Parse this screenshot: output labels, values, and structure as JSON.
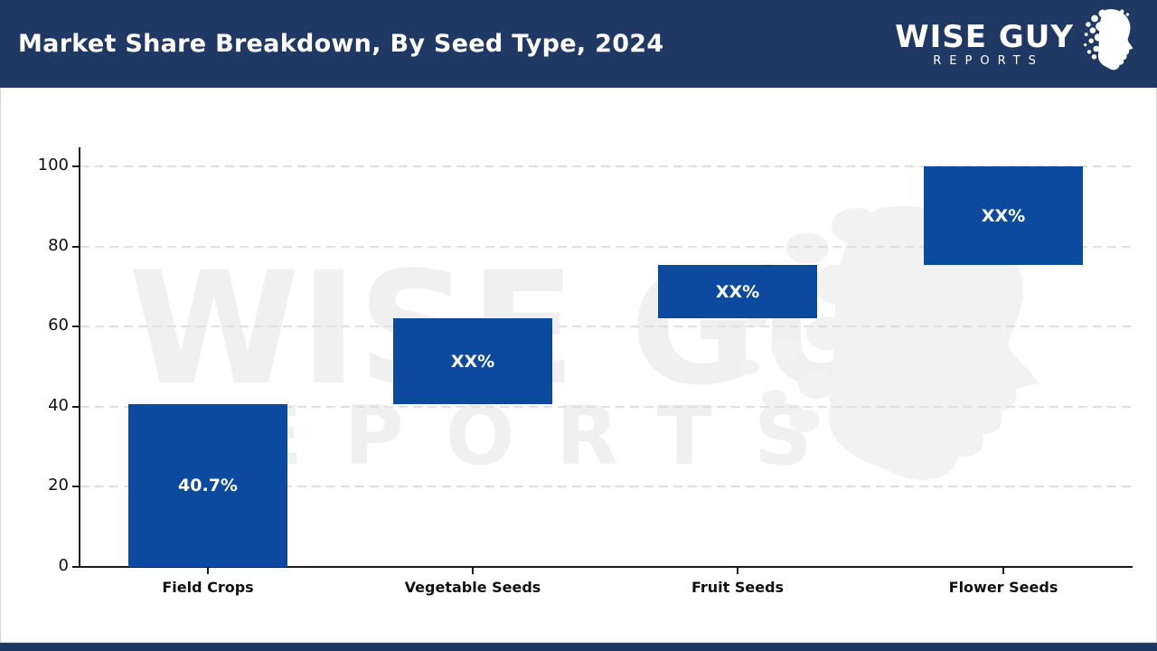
{
  "header": {
    "title": "Market Share Breakdown, By Seed Type, 2024",
    "logo": {
      "line1": "WISE GUY",
      "line2": "REPORTS"
    }
  },
  "watermark": {
    "line1": "WISE GUY",
    "line2": "REPORTS"
  },
  "chart_data": {
    "type": "bar",
    "variant": "waterfall",
    "title": "Market Share Breakdown, By Seed Type, 2024",
    "categories": [
      "Field Crops",
      "Vegetable Seeds",
      "Fruit Seeds",
      "Flower Seeds"
    ],
    "segments": [
      {
        "category": "Field Crops",
        "start": 0,
        "end": 40.7,
        "label": "40.7%"
      },
      {
        "category": "Vegetable Seeds",
        "start": 40.7,
        "end": 62.0,
        "label": "XX%"
      },
      {
        "category": "Fruit Seeds",
        "start": 62.0,
        "end": 75.3,
        "label": "XX%"
      },
      {
        "category": "Flower Seeds",
        "start": 75.3,
        "end": 100,
        "label": "XX%"
      }
    ],
    "yticks": [
      0,
      20,
      40,
      60,
      80,
      100
    ],
    "ylim": [
      0,
      105
    ],
    "xlabel": "",
    "ylabel": "",
    "grid": "horizontal-dashed",
    "legend": "none",
    "bar_color": "#0c4aa0",
    "label_color": "#ffffff"
  },
  "colors": {
    "header_bg": "#1f3864",
    "footer_bg": "#1f3864",
    "bar": "#0c4aa0",
    "grid": "#e0e0e0",
    "axis": "#1a1a1a",
    "watermark": "#f0f0f0"
  }
}
